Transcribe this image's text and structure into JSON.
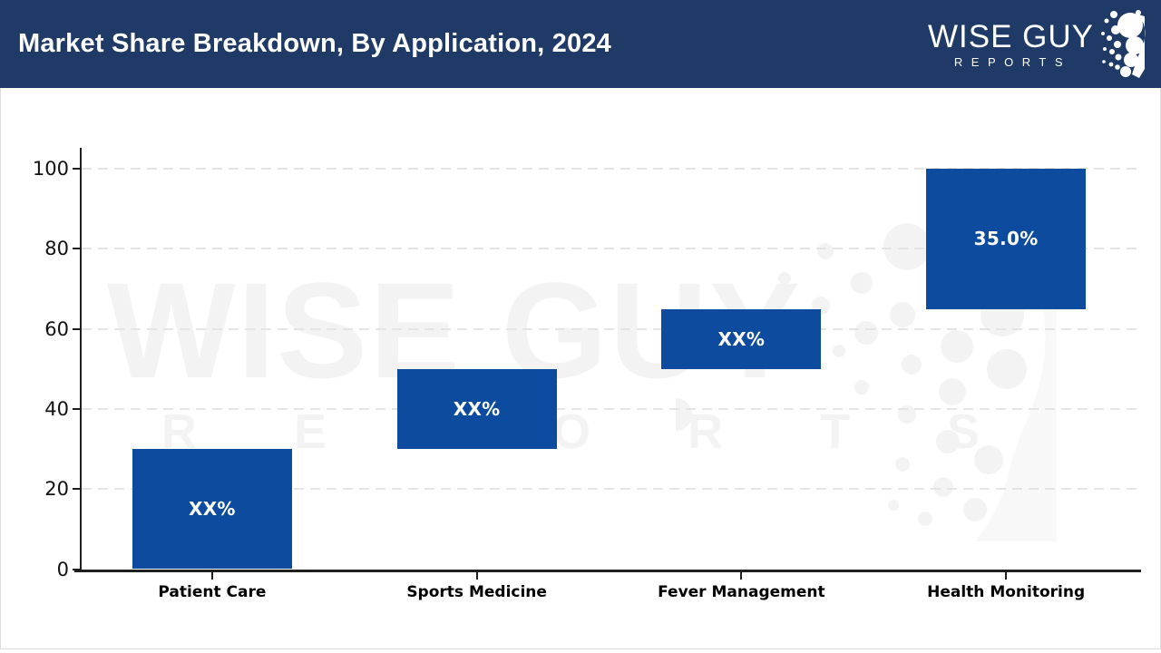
{
  "header": {
    "title": "Market Share Breakdown, By Application, 2024",
    "brand_line1": "WISE GUY",
    "brand_line2": "REPORTS"
  },
  "watermark": {
    "line1": "WISE GUY",
    "line2": "R E P O R T S"
  },
  "chart_data": {
    "type": "bar",
    "subtype": "waterfall",
    "title": "Market Share Breakdown, By Application, 2024",
    "categories": [
      "Patient Care",
      "Sports Medicine",
      "Fever Management",
      "Health Monitoring"
    ],
    "segments": [
      {
        "category": "Patient Care",
        "start": 0,
        "end": 30,
        "label": "XX%"
      },
      {
        "category": "Sports Medicine",
        "start": 30,
        "end": 50,
        "label": "XX%"
      },
      {
        "category": "Fever Management",
        "start": 50,
        "end": 65,
        "label": "XX%"
      },
      {
        "category": "Health Monitoring",
        "start": 65,
        "end": 100,
        "label": "35.0%"
      }
    ],
    "yticks": [
      0,
      20,
      40,
      60,
      80,
      100
    ],
    "ylim": [
      0,
      105
    ],
    "xlabel": "",
    "ylabel": "",
    "grid": "horizontal-dashed",
    "legend": "none"
  },
  "colors": {
    "header_bg": "#1f3a66",
    "bar": "#0c4b9e",
    "bar_label": "#ffffff",
    "grid": "#e4e4e4",
    "axis": "#1f1f1f",
    "watermark": "#f3f3f3",
    "frame": "#dcdcdc"
  }
}
